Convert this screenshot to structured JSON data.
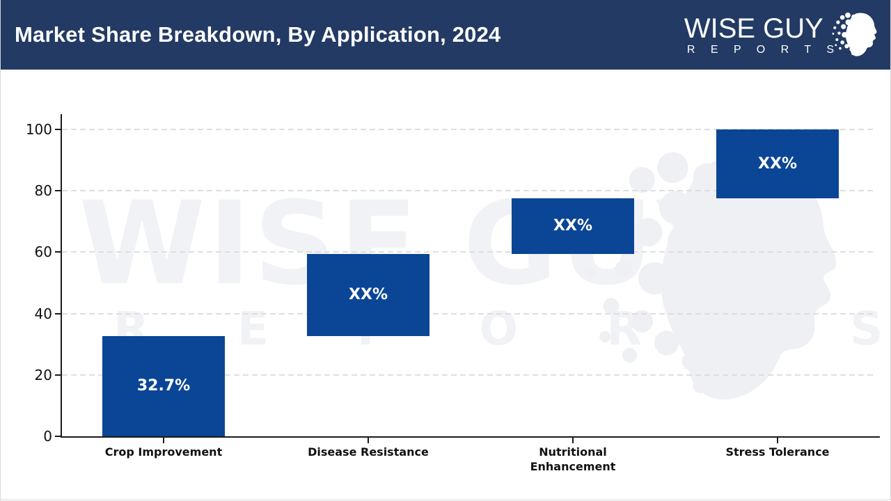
{
  "header": {
    "title": "Market Share Breakdown, By Application, 2024",
    "bg_color": "#223a64",
    "logo": {
      "line1": "WISE GUY",
      "line2": "R E P O R T S"
    }
  },
  "watermark": {
    "line1": "WISE GUY",
    "line2": "R E P O R T S"
  },
  "chart_data": {
    "type": "bar",
    "subtype": "waterfall",
    "title": "Market Share Breakdown, By Application, 2024",
    "categories": [
      "Crop Improvement",
      "Disease Resistance",
      "Nutritional Enhancement",
      "Stress Tolerance"
    ],
    "segments": [
      {
        "category": "Crop Improvement",
        "start": 0,
        "end": 32.7,
        "label": "32.7%"
      },
      {
        "category": "Disease Resistance",
        "start": 32.7,
        "end": 59.5,
        "label": "XX%"
      },
      {
        "category": "Nutritional Enhancement",
        "start": 59.5,
        "end": 77.5,
        "label": "XX%"
      },
      {
        "category": "Stress Tolerance",
        "start": 77.5,
        "end": 100,
        "label": "XX%"
      }
    ],
    "yticks": [
      0,
      20,
      40,
      60,
      80,
      100
    ],
    "ylim": [
      0,
      105
    ],
    "xlabel": "",
    "ylabel": "",
    "grid": "horizontal-dashed",
    "legend": "none",
    "bar_color": "#0b4596",
    "bar_label_color": "#ffffff",
    "axis_color": "#1a1a1a",
    "gridline_color": "#dedede",
    "header_color": "#223a64"
  }
}
